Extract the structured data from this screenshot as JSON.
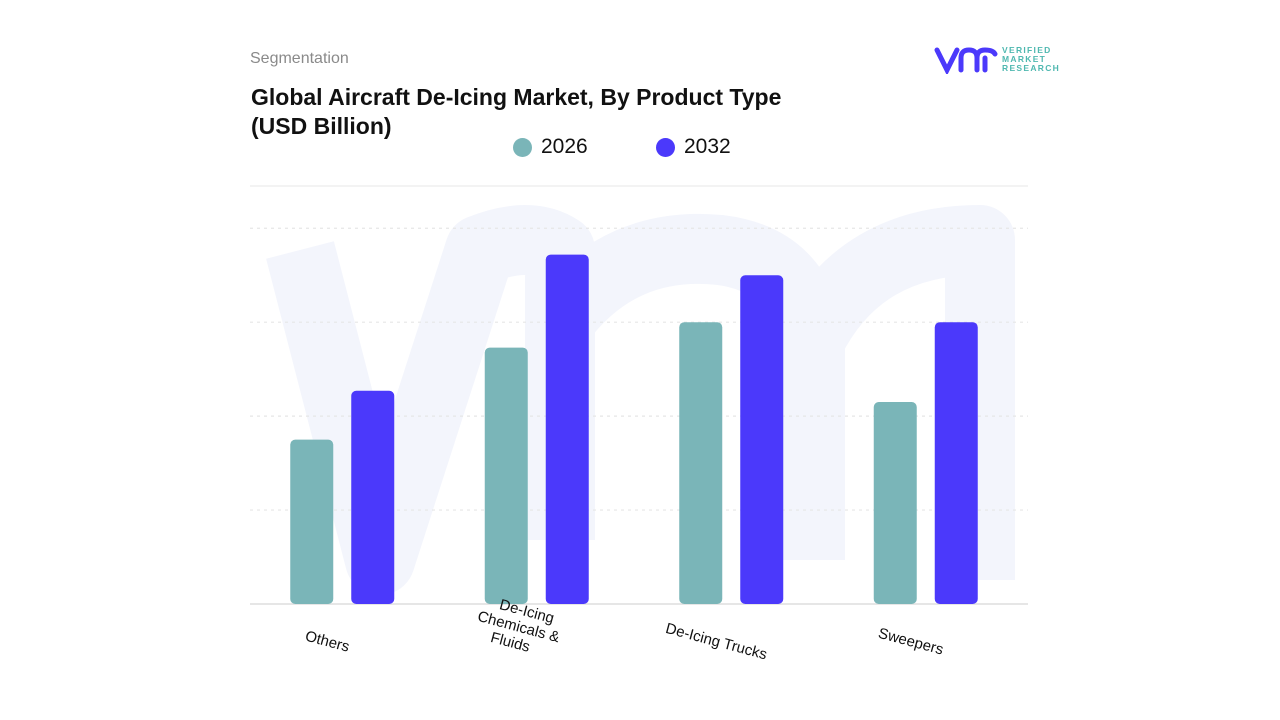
{
  "header": {
    "segment_label": "Segmentation",
    "title_line1": "Global Aircraft De-Icing Market, By Product Type",
    "title_line2": "(USD Billion)"
  },
  "logo": {
    "mark": "vmr",
    "line1": "VERIFIED",
    "line2": "MARKET",
    "line3": "RESEARCH"
  },
  "chart_data": {
    "type": "bar",
    "title": "Global Aircraft De-Icing Market, By Product Type (USD Billion)",
    "categories": [
      "Others",
      "De-Icing Chemicals & Fluids",
      "De-Icing Trucks",
      "Sweepers"
    ],
    "category_label_lines": [
      [
        "Others"
      ],
      [
        "De-Icing",
        "Chemicals &",
        "Fluids"
      ],
      [
        "De-Icing Trucks"
      ],
      [
        "Sweepers"
      ]
    ],
    "series": [
      {
        "name": "2026",
        "color": "#7ab5b8",
        "values": [
          1.75,
          2.73,
          3.0,
          2.15
        ]
      },
      {
        "name": "2032",
        "color": "#4b39fb",
        "values": [
          2.27,
          3.72,
          3.5,
          3.0
        ]
      }
    ],
    "ylim": [
      0,
      4.45
    ],
    "y_ticks_labeled": false,
    "grid": true,
    "legend_position": "top-center",
    "xlabel": "",
    "ylabel": ""
  }
}
